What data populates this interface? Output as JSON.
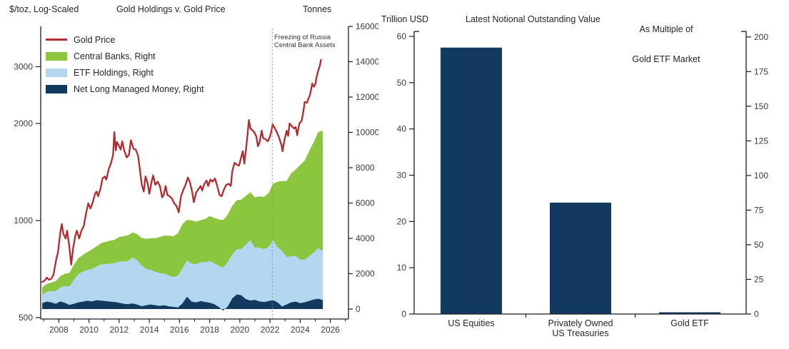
{
  "chart_data": [
    {
      "type": "line+stacked-area",
      "title": "Gold Holdings v. Gold Price",
      "left_axis_label": "$/toz, Log-Scaled",
      "right_axis_label": "Tonnes",
      "left_axis": {
        "scale": "log",
        "min": 500,
        "max": 4000,
        "ticks": [
          500,
          1000,
          2000,
          3000
        ]
      },
      "right_axis": {
        "min": 0,
        "max": 16000,
        "ticks": [
          0,
          2000,
          4000,
          6000,
          8000,
          10000,
          12000,
          14000,
          16000
        ]
      },
      "x_axis": {
        "min": 2006.8,
        "max": 2027.2,
        "major_ticks": [
          2008,
          2010,
          2012,
          2014,
          2016,
          2018,
          2020,
          2022,
          2024,
          2026
        ],
        "minor_ticks": [
          2007,
          2009,
          2011,
          2013,
          2015,
          2017,
          2019,
          2021,
          2023,
          2025,
          2027
        ]
      },
      "legend": [
        {
          "label": "Gold Price",
          "color": "#b2292e",
          "swatch": "line"
        },
        {
          "label": "Central Banks, Right",
          "color": "#8cc63e",
          "swatch": "area"
        },
        {
          "label": "ETF Holdings, Right",
          "color": "#b3d7ee",
          "swatch": "area"
        },
        {
          "label": "Net Long Managed Money, Right",
          "color": "#123a5f",
          "swatch": "area"
        }
      ],
      "annotation": {
        "line1": "Freezing of Russia",
        "line2": "Central Bank Assets",
        "x": 2022.15,
        "marker": "dashed-vertical-line"
      },
      "gold_price": {
        "name": "Gold Price",
        "color": "#b2292e",
        "axis": "left",
        "unit": "$/toz",
        "points": [
          [
            2006.9,
            645
          ],
          [
            2007.05,
            650
          ],
          [
            2007.2,
            665
          ],
          [
            2007.35,
            655
          ],
          [
            2007.5,
            660
          ],
          [
            2007.65,
            680
          ],
          [
            2007.8,
            745
          ],
          [
            2007.95,
            800
          ],
          [
            2008.1,
            920
          ],
          [
            2008.2,
            975
          ],
          [
            2008.3,
            910
          ],
          [
            2008.45,
            880
          ],
          [
            2008.55,
            930
          ],
          [
            2008.7,
            830
          ],
          [
            2008.82,
            730
          ],
          [
            2008.95,
            820
          ],
          [
            2009.1,
            900
          ],
          [
            2009.2,
            930
          ],
          [
            2009.35,
            880
          ],
          [
            2009.5,
            930
          ],
          [
            2009.65,
            960
          ],
          [
            2009.8,
            1050
          ],
          [
            2009.95,
            1130
          ],
          [
            2010.1,
            1090
          ],
          [
            2010.25,
            1140
          ],
          [
            2010.4,
            1210
          ],
          [
            2010.5,
            1230
          ],
          [
            2010.6,
            1190
          ],
          [
            2010.75,
            1250
          ],
          [
            2010.9,
            1350
          ],
          [
            2011.05,
            1370
          ],
          [
            2011.15,
            1340
          ],
          [
            2011.3,
            1440
          ],
          [
            2011.45,
            1500
          ],
          [
            2011.6,
            1600
          ],
          [
            2011.68,
            1880
          ],
          [
            2011.78,
            1650
          ],
          [
            2011.85,
            1750
          ],
          [
            2011.95,
            1720
          ],
          [
            2012.1,
            1660
          ],
          [
            2012.2,
            1760
          ],
          [
            2012.35,
            1640
          ],
          [
            2012.5,
            1570
          ],
          [
            2012.65,
            1600
          ],
          [
            2012.78,
            1775
          ],
          [
            2012.95,
            1670
          ],
          [
            2013.1,
            1660
          ],
          [
            2013.25,
            1590
          ],
          [
            2013.35,
            1470
          ],
          [
            2013.5,
            1290
          ],
          [
            2013.63,
            1230
          ],
          [
            2013.75,
            1370
          ],
          [
            2013.88,
            1310
          ],
          [
            2014.0,
            1210
          ],
          [
            2014.15,
            1320
          ],
          [
            2014.25,
            1380
          ],
          [
            2014.4,
            1290
          ],
          [
            2014.55,
            1320
          ],
          [
            2014.7,
            1280
          ],
          [
            2014.85,
            1180
          ],
          [
            2014.95,
            1200
          ],
          [
            2015.08,
            1280
          ],
          [
            2015.2,
            1200
          ],
          [
            2015.35,
            1190
          ],
          [
            2015.5,
            1170
          ],
          [
            2015.65,
            1130
          ],
          [
            2015.8,
            1110
          ],
          [
            2015.95,
            1060
          ],
          [
            2016.1,
            1190
          ],
          [
            2016.25,
            1245
          ],
          [
            2016.4,
            1290
          ],
          [
            2016.55,
            1360
          ],
          [
            2016.7,
            1310
          ],
          [
            2016.85,
            1220
          ],
          [
            2016.95,
            1140
          ],
          [
            2017.1,
            1220
          ],
          [
            2017.25,
            1250
          ],
          [
            2017.4,
            1280
          ],
          [
            2017.5,
            1240
          ],
          [
            2017.65,
            1300
          ],
          [
            2017.8,
            1330
          ],
          [
            2017.9,
            1280
          ],
          [
            2018.05,
            1340
          ],
          [
            2018.2,
            1320
          ],
          [
            2018.35,
            1350
          ],
          [
            2018.5,
            1280
          ],
          [
            2018.65,
            1200
          ],
          [
            2018.8,
            1190
          ],
          [
            2018.95,
            1250
          ],
          [
            2019.1,
            1290
          ],
          [
            2019.25,
            1300
          ],
          [
            2019.4,
            1280
          ],
          [
            2019.5,
            1420
          ],
          [
            2019.65,
            1510
          ],
          [
            2019.8,
            1490
          ],
          [
            2019.95,
            1480
          ],
          [
            2020.1,
            1580
          ],
          [
            2020.2,
            1640
          ],
          [
            2020.3,
            1500
          ],
          [
            2020.45,
            1730
          ],
          [
            2020.6,
            2050
          ],
          [
            2020.7,
            1930
          ],
          [
            2020.8,
            1910
          ],
          [
            2020.95,
            1880
          ],
          [
            2021.1,
            1820
          ],
          [
            2021.2,
            1700
          ],
          [
            2021.3,
            1740
          ],
          [
            2021.45,
            1900
          ],
          [
            2021.55,
            1800
          ],
          [
            2021.7,
            1790
          ],
          [
            2021.85,
            1760
          ],
          [
            2022.0,
            1820
          ],
          [
            2022.1,
            1900
          ],
          [
            2022.18,
            1990
          ],
          [
            2022.3,
            1940
          ],
          [
            2022.45,
            1880
          ],
          [
            2022.6,
            1810
          ],
          [
            2022.75,
            1720
          ],
          [
            2022.83,
            1640
          ],
          [
            2022.95,
            1770
          ],
          [
            2023.1,
            1900
          ],
          [
            2023.2,
            1830
          ],
          [
            2023.3,
            2000
          ],
          [
            2023.45,
            1960
          ],
          [
            2023.6,
            1930
          ],
          [
            2023.7,
            1950
          ],
          [
            2023.8,
            1840
          ],
          [
            2023.95,
            2000
          ],
          [
            2024.1,
            2040
          ],
          [
            2024.2,
            2160
          ],
          [
            2024.3,
            2330
          ],
          [
            2024.45,
            2320
          ],
          [
            2024.55,
            2390
          ],
          [
            2024.65,
            2450
          ],
          [
            2024.8,
            2660
          ],
          [
            2024.9,
            2600
          ],
          [
            2025.0,
            2640
          ],
          [
            2025.1,
            2800
          ],
          [
            2025.2,
            2920
          ],
          [
            2025.3,
            3020
          ],
          [
            2025.38,
            3150
          ]
        ]
      },
      "stacked_areas": {
        "axis": "right",
        "unit": "tonnes",
        "stacked": true,
        "x": [
          2006.9,
          2007.2,
          2007.5,
          2007.8,
          2008.1,
          2008.4,
          2008.7,
          2009.0,
          2009.3,
          2009.6,
          2009.9,
          2010.2,
          2010.5,
          2010.8,
          2011.1,
          2011.4,
          2011.7,
          2012.0,
          2012.3,
          2012.6,
          2012.9,
          2013.2,
          2013.5,
          2013.8,
          2014.1,
          2014.4,
          2014.7,
          2015.0,
          2015.3,
          2015.6,
          2015.9,
          2016.2,
          2016.5,
          2016.8,
          2017.1,
          2017.4,
          2017.7,
          2018.0,
          2018.3,
          2018.6,
          2018.9,
          2019.2,
          2019.5,
          2019.8,
          2020.1,
          2020.4,
          2020.7,
          2021.0,
          2021.3,
          2021.6,
          2021.9,
          2022.2,
          2022.5,
          2022.8,
          2023.1,
          2023.4,
          2023.7,
          2024.0,
          2024.3,
          2024.6,
          2024.9,
          2025.2,
          2025.5
        ],
        "series": [
          {
            "name": "Net Long Managed Money",
            "color": "#123a5f",
            "values": [
              330,
              420,
              380,
              300,
              430,
              350,
              230,
              300,
              380,
              420,
              470,
              430,
              500,
              480,
              450,
              420,
              400,
              350,
              300,
              280,
              320,
              250,
              160,
              220,
              260,
              210,
              180,
              210,
              150,
              120,
              90,
              320,
              700,
              420,
              380,
              450,
              400,
              360,
              280,
              120,
              -90,
              150,
              600,
              830,
              780,
              560,
              480,
              520,
              430,
              400,
              450,
              500,
              380,
              140,
              260,
              380,
              420,
              330,
              380,
              460,
              540,
              580,
              510
            ]
          },
          {
            "name": "ETF Holdings",
            "color": "#b3d7ee",
            "values": [
              480,
              560,
              640,
              720,
              800,
              950,
              1050,
              1350,
              1600,
              1700,
              1750,
              1850,
              1900,
              2050,
              2100,
              2150,
              2200,
              2350,
              2400,
              2450,
              2600,
              2500,
              2300,
              2050,
              1950,
              1900,
              1850,
              1800,
              1750,
              1700,
              1800,
              2000,
              2050,
              2150,
              2150,
              2200,
              2250,
              2350,
              2320,
              2330,
              2450,
              2500,
              2500,
              2550,
              2620,
              3100,
              3420,
              2950,
              3050,
              3000,
              3050,
              3400,
              3120,
              3160,
              2690,
              2600,
              2580,
              2470,
              2420,
              2540,
              2660,
              2890,
              2750
            ]
          },
          {
            "name": "Central Banks",
            "color": "#8cc63e",
            "values": [
              420,
              450,
              480,
              560,
              640,
              700,
              760,
              850,
              900,
              950,
              1000,
              1100,
              1150,
              1200,
              1250,
              1300,
              1320,
              1380,
              1420,
              1450,
              1420,
              1480,
              1560,
              1700,
              1800,
              1900,
              2050,
              2150,
              2250,
              2300,
              2400,
              2500,
              2300,
              2450,
              2420,
              2380,
              2450,
              2550,
              2560,
              2620,
              2680,
              2700,
              2750,
              2780,
              2800,
              2750,
              2720,
              2850,
              2900,
              2950,
              3050,
              3200,
              3700,
              3950,
              4300,
              4700,
              4900,
              5350,
              5600,
              5950,
              6250,
              6550,
              6840
            ]
          }
        ]
      }
    },
    {
      "type": "bar",
      "title": "Latest Notional Outstanding Value",
      "left_axis_label": "Trillion USD",
      "right_axis_label_line1": "As Multiple of",
      "right_axis_label_line2": "Gold ETF Market",
      "categories": [
        "US Equities",
        "Privately Owned\nUS Treasuries",
        "Gold ETF"
      ],
      "values": [
        57.5,
        24,
        0.3
      ],
      "bar_color": "#123a5f",
      "left_axis": {
        "min": 0,
        "max": 60,
        "ticks": [
          0,
          10,
          20,
          30,
          40,
          50,
          60
        ]
      },
      "right_axis": {
        "min": 0,
        "max": 204,
        "ticks": [
          0,
          25,
          50,
          75,
          100,
          125,
          150,
          175,
          200
        ]
      }
    }
  ]
}
